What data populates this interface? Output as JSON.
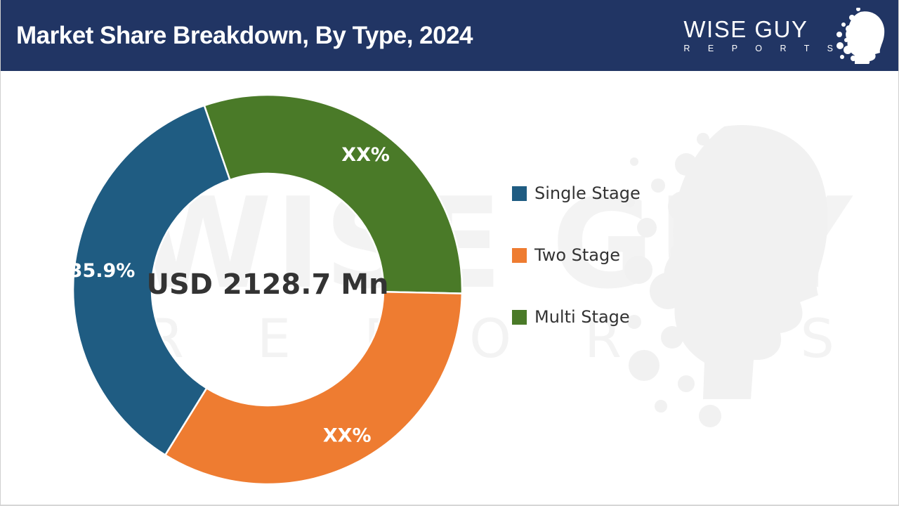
{
  "header": {
    "title": "Market Share Breakdown, By Type, 2024",
    "logo": {
      "wordmark": "WISE GUY",
      "subtext": "R E P O R T S"
    }
  },
  "watermark": {
    "line1": "WISE GUY",
    "line2": "R E P O R T S"
  },
  "chart_data": {
    "type": "pie",
    "subtype": "donut",
    "title": "Market Share Breakdown, By Type, 2024",
    "center_label": "USD 2128.7 Mn",
    "start_angle_deg": -19,
    "inner_radius_ratio": 0.595,
    "legend_position": "right",
    "segments": [
      {
        "name": "Multi Stage",
        "display_label": "XX%",
        "value_pct": 30.6,
        "color": "#4a7a28"
      },
      {
        "name": "Two Stage",
        "display_label": "XX%",
        "value_pct": 33.5,
        "color": "#ee7c31"
      },
      {
        "name": "Single Stage",
        "display_label": "35.9%",
        "value_pct": 35.9,
        "color": "#1f5c82"
      }
    ]
  },
  "legend": {
    "items": [
      {
        "label": "Single Stage",
        "color": "#1f5c82"
      },
      {
        "label": "Two Stage",
        "color": "#ee7c31"
      },
      {
        "label": "Multi Stage",
        "color": "#4a7a28"
      }
    ]
  },
  "colors": {
    "header_bg": "#213564",
    "center_text": "#333333",
    "watermark": "#f3f3f3",
    "slice_label_text": "#ffffff"
  }
}
